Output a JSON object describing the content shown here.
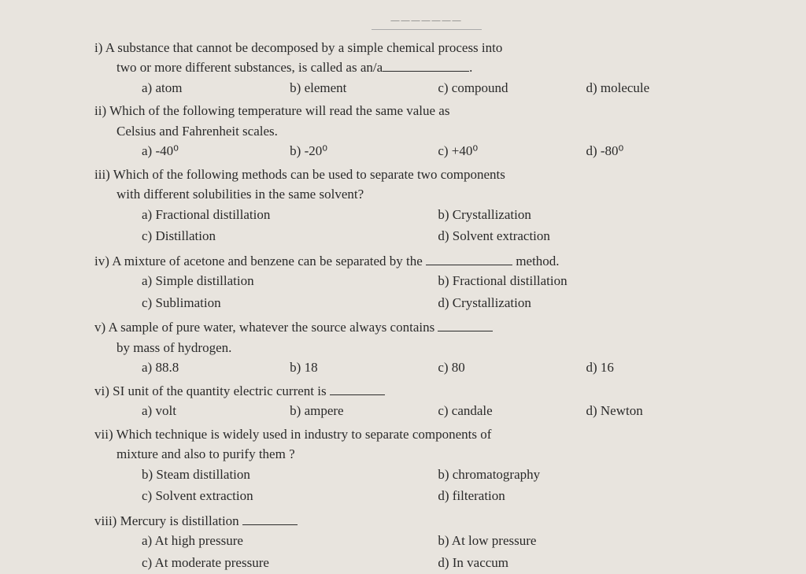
{
  "doc": {
    "background_color": "#e8e4de",
    "text_color": "#2a2a2a",
    "font_family": "Times New Roman",
    "font_size_pt": 13,
    "header_artifact": "———————"
  },
  "questions": [
    {
      "num": "i)",
      "text_line1": "A substance that cannot be decomposed by a simple chemical process into",
      "text_line2": "two or more different substances, is called as an/a",
      "blank_after": true,
      "trailing": ".",
      "options_layout": "4col",
      "options": [
        {
          "label": "a)",
          "text": "atom"
        },
        {
          "label": "b)",
          "text": "element"
        },
        {
          "label": "c)",
          "text": "compound"
        },
        {
          "label": "d)",
          "text": "molecule"
        }
      ]
    },
    {
      "num": "ii)",
      "text_line1": "Which of the following temperature will read the same value as",
      "text_line2": "Celsius and Fahrenheit scales.",
      "options_layout": "4col",
      "options": [
        {
          "label": "a)",
          "text": "-40⁰"
        },
        {
          "label": "b)",
          "text": "-20⁰"
        },
        {
          "label": "c)",
          "text": "+40⁰"
        },
        {
          "label": "d)",
          "text": "-80⁰"
        }
      ]
    },
    {
      "num": "iii)",
      "text_line1": "Which of the following methods can be used to separate two components",
      "text_line2": "with different solubilities in the same solvent?",
      "options_layout": "2col",
      "options": [
        {
          "label": "a)",
          "text": "Fractional distillation"
        },
        {
          "label": "b)",
          "text": "Crystallization"
        },
        {
          "label": "c)",
          "text": "Distillation"
        },
        {
          "label": "d)",
          "text": "Solvent extraction"
        }
      ]
    },
    {
      "num": "iv)",
      "text_line1": "A mixture of acetone and benzene can be separated by the",
      "blank_after": true,
      "trailing": "method.",
      "options_layout": "2col",
      "options": [
        {
          "label": "a)",
          "text": "Simple distillation"
        },
        {
          "label": "b)",
          "text": "Fractional distillation"
        },
        {
          "label": "c)",
          "text": "Sublimation"
        },
        {
          "label": "d)",
          "text": "Crystallization"
        }
      ]
    },
    {
      "num": "v)",
      "text_line1": "A sample of pure water, whatever the source always contains",
      "blank_after_short": true,
      "text_line2": "by mass of hydrogen.",
      "options_layout": "4col",
      "options": [
        {
          "label": "a)",
          "text": "88.8"
        },
        {
          "label": "b)",
          "text": "18"
        },
        {
          "label": "c)",
          "text": "80"
        },
        {
          "label": "d)",
          "text": "16"
        }
      ]
    },
    {
      "num": "vi)",
      "text_line1": "SI unit of the quantity electric current is",
      "blank_after_short": true,
      "options_layout": "4col",
      "options": [
        {
          "label": "a)",
          "text": "volt"
        },
        {
          "label": "b)",
          "text": "ampere"
        },
        {
          "label": "c)",
          "text": "candale"
        },
        {
          "label": "d)",
          "text": "Newton"
        }
      ]
    },
    {
      "num": "vii)",
      "text_line1": "Which technique is widely used in industry to separate components of",
      "text_line2": "mixture and also to purify them ?",
      "options_layout": "2col",
      "options": [
        {
          "label": "b)",
          "text": "Steam distillation"
        },
        {
          "label": "b)",
          "text": "chromatography"
        },
        {
          "label": "c)",
          "text": "Solvent extraction"
        },
        {
          "label": "d)",
          "text": "filteration"
        }
      ]
    },
    {
      "num": "viii)",
      "text_line1": "Mercury is distillation",
      "blank_after_short": true,
      "options_layout": "2col",
      "options": [
        {
          "label": "a)",
          "text": "At high pressure"
        },
        {
          "label": "b)",
          "text": "At low pressure"
        },
        {
          "label": "c)",
          "text": "At moderate pressure"
        },
        {
          "label": "d)",
          "text": "In vaccum"
        }
      ]
    }
  ]
}
